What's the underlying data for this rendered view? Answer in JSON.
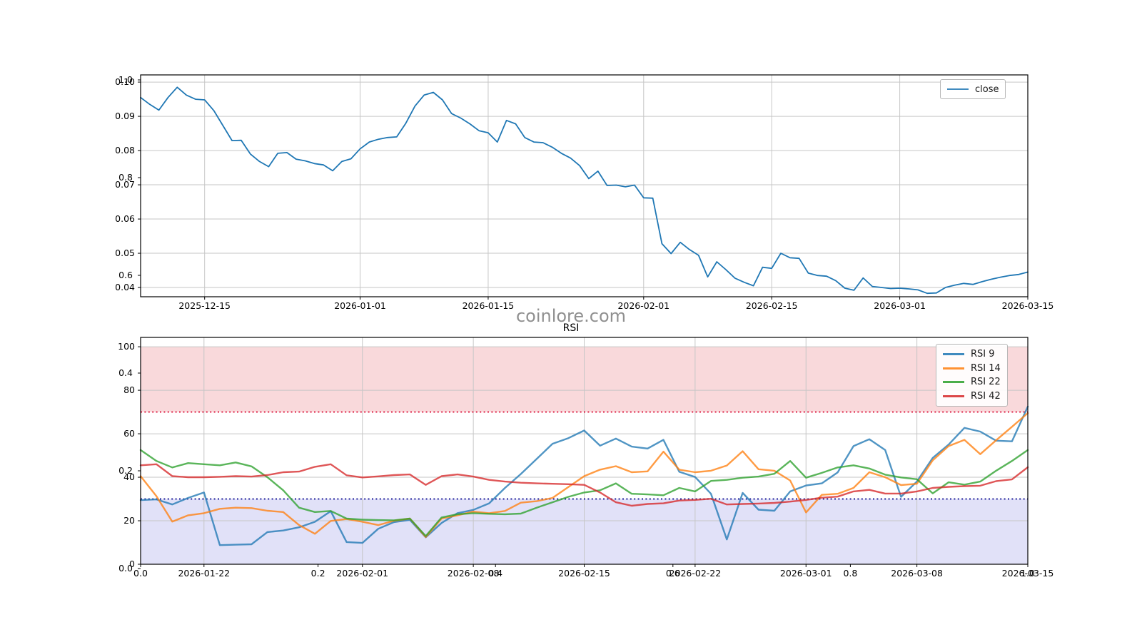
{
  "watermark": "coinlore.com",
  "colors": {
    "close_line": "#1f77b4",
    "rsi9": "#1f77b4",
    "rsi14": "#ff7f0e",
    "rsi22": "#2ca02c",
    "rsi42": "#d62728",
    "overbought_band": "rgba(220,20,30,0.16)",
    "oversold_band": "rgba(55,55,205,0.15)",
    "overbought_line": "#dc143c",
    "oversold_line": "#00008b",
    "grid": "#c6c6c6",
    "watermark_gray": "#909090"
  },
  "ghost_axis": {
    "x_labels": [
      "0.0",
      "0.2",
      "0.4",
      "0.6",
      "0.8",
      "1.0"
    ],
    "y_labels": [
      "0.0",
      "0.2",
      "0.4",
      "0.6",
      "0.8",
      "1.0"
    ]
  },
  "chart_data": [
    {
      "type": "line",
      "name": "price",
      "title": "",
      "n_points": 98,
      "start_date": "2025-12-08",
      "end_date": "2026-03-15",
      "grid": true,
      "x_ticks": [
        {
          "pos": 7,
          "label": "2025-12-15"
        },
        {
          "pos": 24,
          "label": "2026-01-01"
        },
        {
          "pos": 38,
          "label": "2026-01-15"
        },
        {
          "pos": 55,
          "label": "2026-02-01"
        },
        {
          "pos": 69,
          "label": "2026-02-15"
        },
        {
          "pos": 83,
          "label": "2026-03-01"
        },
        {
          "pos": 97,
          "label": "2026-03-15"
        }
      ],
      "y_ticks": [
        {
          "value": 0.04,
          "label": "0.04"
        },
        {
          "value": 0.05,
          "label": "0.05"
        },
        {
          "value": 0.06,
          "label": "0.06"
        },
        {
          "value": 0.07,
          "label": "0.07"
        },
        {
          "value": 0.08,
          "label": "0.08"
        },
        {
          "value": 0.09,
          "label": "0.09"
        },
        {
          "value": 0.1,
          "label": "0.10"
        }
      ],
      "ylim": [
        0.0373,
        0.1021
      ],
      "legend_position": "upper right",
      "series": [
        {
          "name": "close",
          "color": "#1f77b4",
          "width": 1.8,
          "opacity": 1,
          "values": [
            0.0955,
            0.0935,
            0.0918,
            0.0955,
            0.0985,
            0.0962,
            0.095,
            0.0948,
            0.0917,
            0.0873,
            0.0829,
            0.083,
            0.079,
            0.0768,
            0.0753,
            0.0792,
            0.0794,
            0.0775,
            0.077,
            0.0762,
            0.0758,
            0.0741,
            0.0768,
            0.0776,
            0.0805,
            0.0825,
            0.0833,
            0.0838,
            0.084,
            0.088,
            0.093,
            0.0962,
            0.097,
            0.0948,
            0.0908,
            0.0895,
            0.0878,
            0.0858,
            0.0852,
            0.0825,
            0.0888,
            0.0878,
            0.0838,
            0.0825,
            0.0823,
            0.081,
            0.0792,
            0.0778,
            0.0756,
            0.0718,
            0.074,
            0.0698,
            0.0699,
            0.0694,
            0.0699,
            0.0662,
            0.0661,
            0.0528,
            0.0499,
            0.0532,
            0.0511,
            0.0494,
            0.0431,
            0.0475,
            0.0452,
            0.0427,
            0.0415,
            0.0405,
            0.0459,
            0.0456,
            0.05,
            0.0487,
            0.0485,
            0.0442,
            0.0435,
            0.0433,
            0.042,
            0.0398,
            0.0392,
            0.0428,
            0.0403,
            0.04,
            0.0397,
            0.0398,
            0.0396,
            0.0393,
            0.0383,
            0.0384,
            0.04,
            0.0407,
            0.0412,
            0.0409,
            0.0417,
            0.0424,
            0.043,
            0.0435,
            0.0438,
            0.0445
          ]
        }
      ]
    },
    {
      "type": "line",
      "name": "rsi",
      "title": "RSI",
      "n_points": 57,
      "start_date": "2026-01-18",
      "end_date": "2026-03-15",
      "grid": true,
      "x_ticks": [
        {
          "pos": 4,
          "label": "2026-01-22"
        },
        {
          "pos": 14,
          "label": "2026-02-01"
        },
        {
          "pos": 21,
          "label": "2026-02-08"
        },
        {
          "pos": 28,
          "label": "2026-02-15"
        },
        {
          "pos": 35,
          "label": "2026-02-22"
        },
        {
          "pos": 42,
          "label": "2026-03-01"
        },
        {
          "pos": 49,
          "label": "2026-03-08"
        },
        {
          "pos": 56,
          "label": "2026-03-15"
        }
      ],
      "y_ticks": [
        {
          "value": 0,
          "label": "0"
        },
        {
          "value": 20,
          "label": "20"
        },
        {
          "value": 40,
          "label": "40"
        },
        {
          "value": 60,
          "label": "60"
        },
        {
          "value": 80,
          "label": "80"
        },
        {
          "value": 100,
          "label": "100"
        }
      ],
      "ylim": [
        0,
        104.3
      ],
      "bands": [
        {
          "from": 70,
          "to": 100,
          "color": "rgba(220,20,30,0.16)",
          "meaning": "overbought"
        },
        {
          "from": 0,
          "to": 30,
          "color": "rgba(55,55,205,0.15)",
          "meaning": "oversold"
        }
      ],
      "hlines": [
        {
          "value": 70,
          "color": "#dc143c",
          "style": "dotted"
        },
        {
          "value": 30,
          "color": "#00008b",
          "style": "dotted"
        }
      ],
      "legend_position": "upper right",
      "series": [
        {
          "name": "RSI 9",
          "color": "#1f77b4",
          "width": 2.4,
          "opacity": 0.78,
          "values": [
            29.5,
            29.8,
            27.5,
            30.5,
            33.0,
            8.8,
            9.0,
            9.2,
            14.8,
            15.5,
            17.0,
            19.5,
            24.4,
            10.2,
            9.8,
            16.3,
            19.4,
            20.4,
            12.4,
            19.0,
            23.5,
            25.0,
            28.0,
            35.1,
            41.5,
            48.4,
            55.4,
            58.0,
            61.5,
            54.5,
            57.8,
            54.1,
            53.2,
            57.2,
            42.5,
            40.1,
            32.4,
            11.4,
            32.8,
            25.1,
            24.6,
            33.5,
            36.2,
            37.2,
            42.2,
            54.3,
            57.5,
            52.5,
            31.0,
            38.0,
            48.9,
            55.0,
            62.7,
            61.0,
            56.8,
            56.5,
            72.5
          ]
        },
        {
          "name": "RSI 14",
          "color": "#ff7f0e",
          "width": 2.4,
          "opacity": 0.78,
          "values": [
            40.5,
            31.3,
            19.6,
            22.5,
            23.5,
            25.5,
            26.0,
            25.8,
            24.6,
            24.0,
            18.0,
            14.0,
            19.9,
            20.8,
            19.5,
            18.0,
            20.0,
            21.0,
            12.5,
            21.0,
            22.5,
            24.2,
            23.5,
            24.5,
            28.3,
            29.0,
            30.5,
            35.5,
            40.5,
            43.5,
            45.1,
            42.3,
            42.7,
            51.8,
            43.5,
            42.3,
            43.0,
            45.4,
            52.0,
            43.7,
            43.0,
            38.5,
            23.8,
            31.9,
            32.4,
            35.1,
            42.3,
            40.0,
            36.4,
            37.0,
            47.8,
            54.3,
            57.2,
            50.6,
            57.0,
            63.2,
            69.5
          ]
        },
        {
          "name": "RSI 22",
          "color": "#2ca02c",
          "width": 2.4,
          "opacity": 0.78,
          "values": [
            52.5,
            47.5,
            44.5,
            46.5,
            46.0,
            45.5,
            46.8,
            45.0,
            40.0,
            34.0,
            26.0,
            24.0,
            24.5,
            21.0,
            20.5,
            20.3,
            20.2,
            21.0,
            13.0,
            21.5,
            23.0,
            23.5,
            23.2,
            23.0,
            23.3,
            26.0,
            28.5,
            31.0,
            33.0,
            34.0,
            37.2,
            32.4,
            32.1,
            31.7,
            35.1,
            33.5,
            38.3,
            38.8,
            39.8,
            40.3,
            41.6,
            47.5,
            39.8,
            42.0,
            44.5,
            45.5,
            44.0,
            41.2,
            39.9,
            39.1,
            32.6,
            37.7,
            36.6,
            38.0,
            43.0,
            47.5,
            52.5
          ]
        },
        {
          "name": "RSI 42",
          "color": "#d62728",
          "width": 2.4,
          "opacity": 0.78,
          "values": [
            45.5,
            46.0,
            40.5,
            40.0,
            40.0,
            40.2,
            40.5,
            40.3,
            41.0,
            42.3,
            42.6,
            44.8,
            46.0,
            40.9,
            39.9,
            40.4,
            41.0,
            41.3,
            36.5,
            40.5,
            41.3,
            40.3,
            38.8,
            38.0,
            37.5,
            37.2,
            37.0,
            36.8,
            36.5,
            33.0,
            28.5,
            26.9,
            27.7,
            28.0,
            29.3,
            29.6,
            30.1,
            27.5,
            27.7,
            27.9,
            28.2,
            28.8,
            29.6,
            30.6,
            31.1,
            33.5,
            34.2,
            32.5,
            32.5,
            33.5,
            35.1,
            35.6,
            35.9,
            36.1,
            38.2,
            39.0,
            44.6
          ]
        }
      ]
    }
  ]
}
